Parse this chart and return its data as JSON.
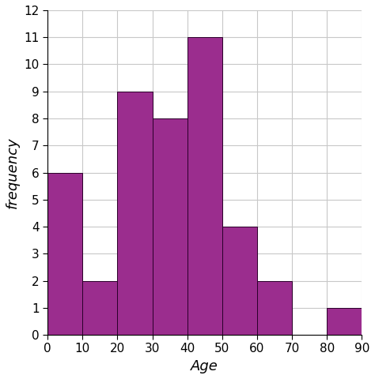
{
  "bin_edges": [
    0,
    10,
    20,
    30,
    40,
    50,
    60,
    70,
    80,
    90
  ],
  "frequencies": [
    6,
    2,
    9,
    8,
    11,
    4,
    2,
    0,
    1
  ],
  "bar_color": "#9B2D8E",
  "bar_edgecolor": "#2a002a",
  "xlabel": "Age",
  "ylabel": "frequency",
  "xlim": [
    0,
    90
  ],
  "ylim": [
    0,
    12
  ],
  "yticks": [
    0,
    1,
    2,
    3,
    4,
    5,
    6,
    7,
    8,
    9,
    10,
    11,
    12
  ],
  "xticks": [
    0,
    10,
    20,
    30,
    40,
    50,
    60,
    70,
    80,
    90
  ],
  "grid_color": "#c8c8c8",
  "figsize": [
    4.74,
    4.8
  ],
  "dpi": 100,
  "tick_fontsize": 11,
  "label_fontsize": 13
}
